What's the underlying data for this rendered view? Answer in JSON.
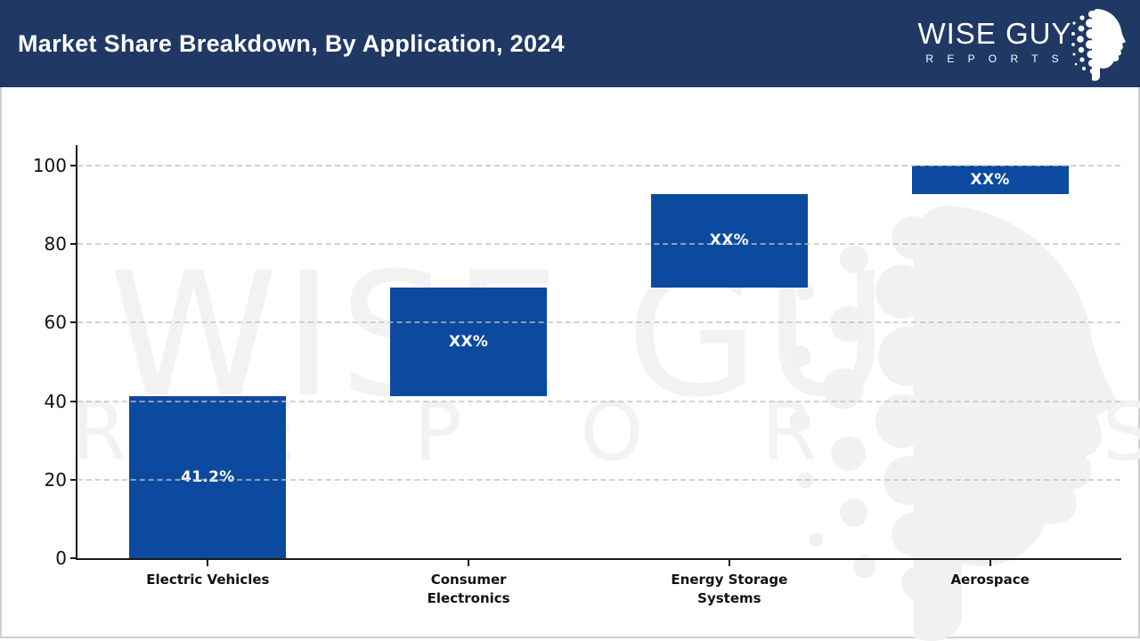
{
  "header": {
    "title": "Market Share Breakdown, By Application, 2024"
  },
  "logo": {
    "wordmark": "WISE GUY",
    "subtext": "R E P O R T S"
  },
  "watermark": {
    "line1": "WISE GUY",
    "line2": "R E P O R T S"
  },
  "colors": {
    "header_bg": "#1f3864",
    "bar_fill": "#0c4a9f",
    "bar_label_text": "#ffffff",
    "axis": "#1a1a1a",
    "gridline": "#c0c0c0",
    "watermark": "#f2f2f2"
  },
  "chart_data": {
    "type": "bar",
    "variant": "waterfall-stacked-percentage",
    "title": "Market Share Breakdown, By Application, 2024",
    "xlabel": "",
    "ylabel": "",
    "ylim": [
      0,
      105
    ],
    "yticks": [
      0,
      20,
      40,
      60,
      80,
      100
    ],
    "grid": "horizontal-dashed",
    "legend": "none",
    "categories": [
      "Electric Vehicles",
      "Consumer Electronics",
      "Energy Storage Systems",
      "Aerospace"
    ],
    "category_label_lines": [
      [
        "Electric Vehicles"
      ],
      [
        "Consumer",
        "Electronics"
      ],
      [
        "Energy Storage",
        "Systems"
      ],
      [
        "Aerospace"
      ]
    ],
    "segments": [
      {
        "category": "Electric Vehicles",
        "start": 0,
        "end": 41.2,
        "value": 41.2,
        "value_label": "41.2%"
      },
      {
        "category": "Consumer Electronics",
        "start": 41.2,
        "end": 68.9,
        "value": 27.7,
        "value_label": "XX%"
      },
      {
        "category": "Energy Storage Systems",
        "start": 68.9,
        "end": 92.8,
        "value": 23.9,
        "value_label": "XX%"
      },
      {
        "category": "Aerospace",
        "start": 92.8,
        "end": 100,
        "value": 7.2,
        "value_label": "XX%"
      }
    ]
  }
}
